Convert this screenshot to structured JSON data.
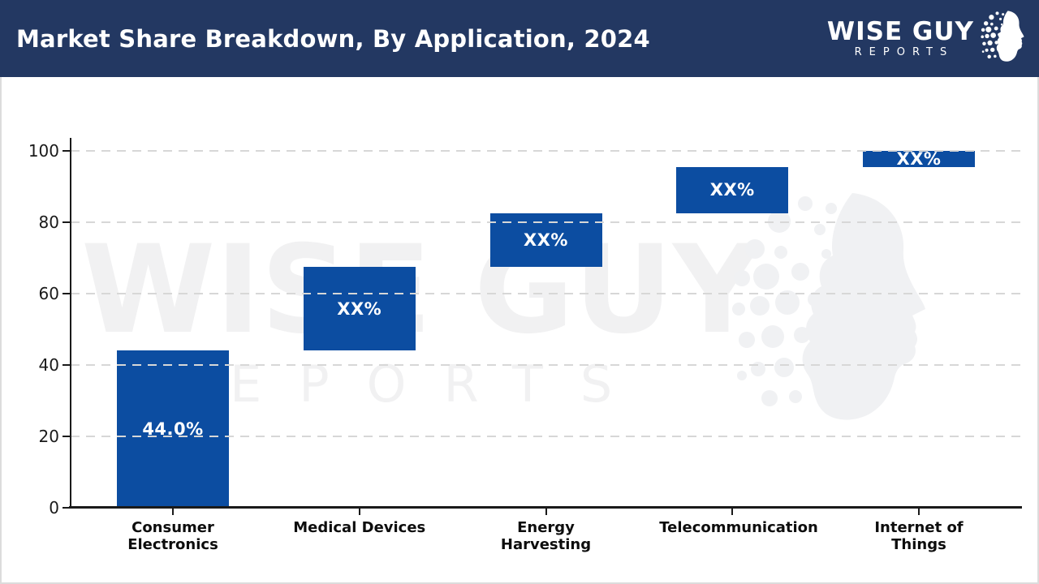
{
  "header": {
    "title": "Market Share Breakdown, By Application, 2024",
    "logo": {
      "line1": "WISE GUY",
      "line2": "REPORTS"
    }
  },
  "watermark": {
    "line1": "WISE GUY",
    "line2": "REPORTS"
  },
  "chart_data": {
    "type": "bar",
    "subtype": "waterfall",
    "title": "Market Share Breakdown, By Application, 2024",
    "categories": [
      "Consumer Electronics",
      "Medical Devices",
      "Energy Harvesting",
      "Telecommunication",
      "Internet of Things"
    ],
    "segments": [
      {
        "category": "Consumer Electronics",
        "start": 0,
        "end": 44,
        "label": "44.0%"
      },
      {
        "category": "Medical Devices",
        "start": 44,
        "end": 67.5,
        "label": "XX%"
      },
      {
        "category": "Energy Harvesting",
        "start": 67.5,
        "end": 82.5,
        "label": "XX%"
      },
      {
        "category": "Telecommunication",
        "start": 82.5,
        "end": 95.5,
        "label": "XX%"
      },
      {
        "category": "Internet of Things",
        "start": 95.5,
        "end": 100,
        "label": "XX%"
      }
    ],
    "yticks": [
      0,
      20,
      40,
      60,
      80,
      100
    ],
    "ylim": [
      0,
      103.6
    ],
    "xlabel": "",
    "ylabel": "",
    "grid": "horizontal-dashed",
    "legend": "none",
    "bar_color": "#0c4da1",
    "value_label_color": "#ffffff"
  },
  "colors": {
    "header_bg": "#233862",
    "bar": "#0c4da1",
    "grid": "#d7d7d7",
    "axis": "#1a1a1a",
    "watermark": "#f1f1f2",
    "frame_border": "#dcdcdc"
  }
}
